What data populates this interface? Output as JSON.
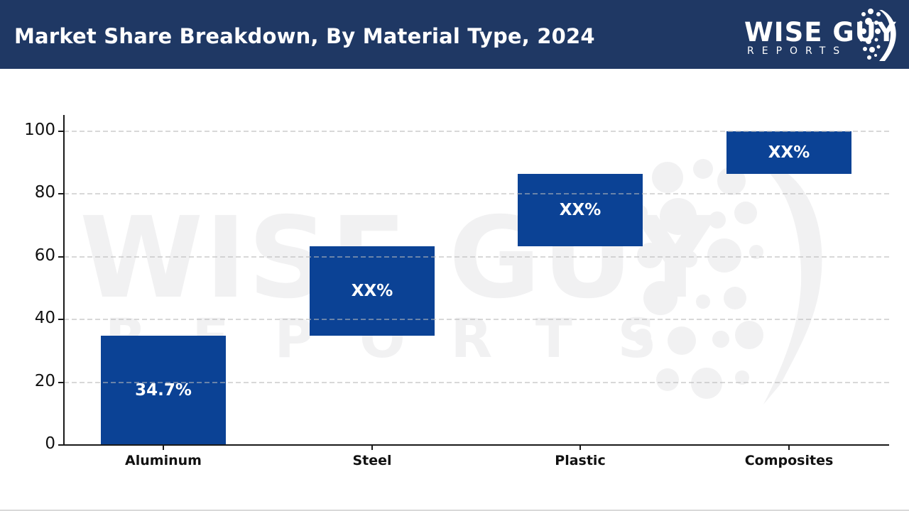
{
  "header": {
    "title": "Market Share Breakdown, By Material Type, 2024",
    "logo": {
      "line1": "WISE GUY",
      "line2": "REPORTS"
    }
  },
  "watermark": {
    "line1": "WISE GUY",
    "line2": "REPORTS"
  },
  "chart_data": {
    "type": "bar",
    "subtype": "waterfall",
    "title": "Market Share Breakdown, By Material Type, 2024",
    "categories": [
      "Aluminum",
      "Steel",
      "Plastic",
      "Composites"
    ],
    "segments": [
      {
        "category": "Aluminum",
        "start": 0,
        "end": 34.7,
        "label": "34.7%"
      },
      {
        "category": "Steel",
        "start": 34.7,
        "end": 63.2,
        "label": "XX%"
      },
      {
        "category": "Plastic",
        "start": 63.2,
        "end": 86.3,
        "label": "XX%"
      },
      {
        "category": "Composites",
        "start": 86.3,
        "end": 100,
        "label": "XX%"
      }
    ],
    "xlabel": "",
    "ylabel": "",
    "ylim": [
      0,
      100
    ],
    "yticks": [
      0,
      20,
      40,
      60,
      80,
      100
    ],
    "grid": "horizontal-dashed",
    "legend": "none",
    "bar_color": "#0b4295",
    "bar_label_color": "#ffffff"
  },
  "colors": {
    "header_bg": "#1f3864",
    "bar": "#0b4295",
    "axis": "#1a1a1a",
    "watermark": "#f1f1f2"
  }
}
